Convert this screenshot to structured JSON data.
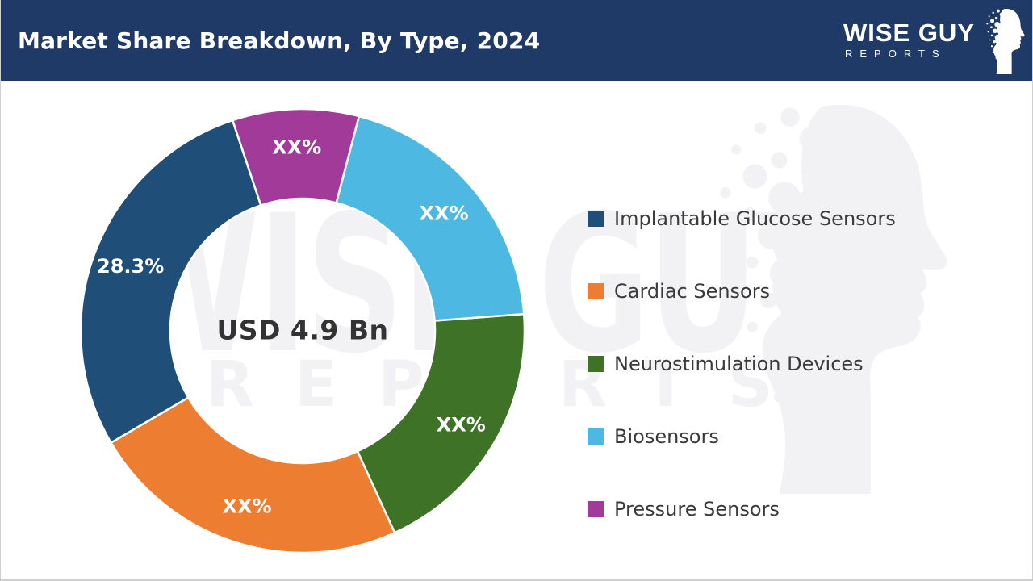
{
  "header": {
    "title": "Market Share Breakdown, By Type, 2024",
    "brand": {
      "name": "WISE GUY",
      "sub": "REPORTS"
    }
  },
  "watermark": {
    "big_text": "WISE GUY",
    "small_text": "REPORTS"
  },
  "colors": {
    "header_bg": "#1F3A66",
    "title_text": "#FFFFFF",
    "center_label_text": "#333333",
    "legend_text": "#3A3A3A",
    "watermark": "#F2F2F5",
    "border": "#CFCFCF"
  },
  "chart_data": {
    "type": "pie",
    "subtype": "donut",
    "title": "Market Share Breakdown, By Type, 2024",
    "center_label": "USD 4.9 Bn",
    "legend_position": "right",
    "start_angle_deg": -18.4,
    "winding": "counterclockwise",
    "segments": [
      {
        "label": "Implantable Glucose Sensors",
        "value_pct": 28.3,
        "display_label": "28.3%",
        "color": "#1F4E79"
      },
      {
        "label": "Cardiac Sensors",
        "value_pct": 23.4,
        "display_label": "XX%",
        "color": "#ED7D31"
      },
      {
        "label": "Neurostimulation Devices",
        "value_pct": 19.4,
        "display_label": "XX%",
        "color": "#3E7227"
      },
      {
        "label": "Biosensors",
        "value_pct": 19.7,
        "display_label": "XX%",
        "color": "#4DB8E2"
      },
      {
        "label": "Pressure Sensors",
        "value_pct": 9.2,
        "display_label": "XX%",
        "color": "#A23A99"
      }
    ]
  }
}
